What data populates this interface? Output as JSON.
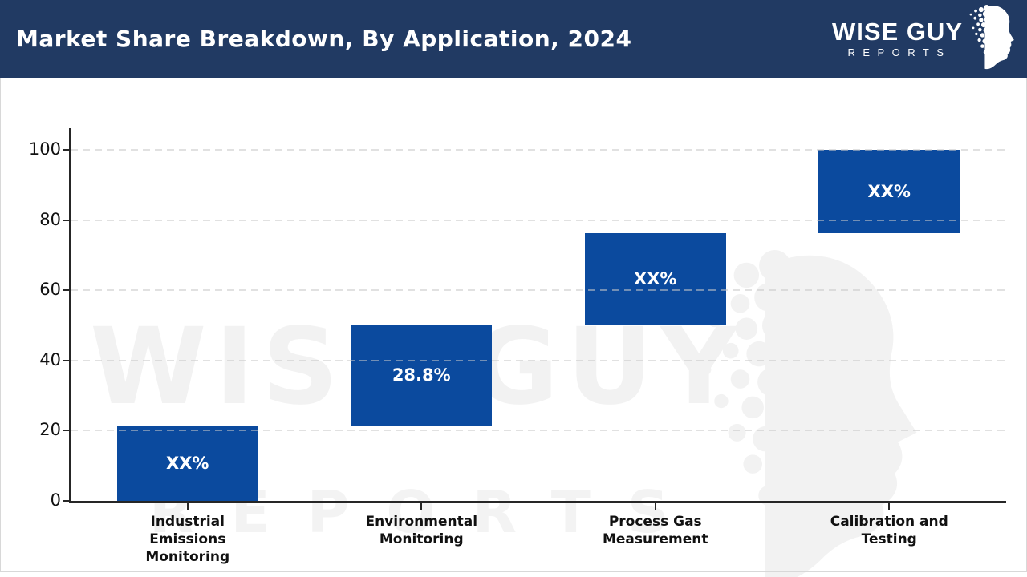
{
  "header": {
    "title": "Market Share Breakdown, By Application, 2024",
    "background_color": "#213a63",
    "logo": {
      "line1": "WISE GUY",
      "line2": "REPORTS"
    }
  },
  "watermark": {
    "line1": "WISE GUY",
    "line2": "REPORTS"
  },
  "chart_data": {
    "type": "bar",
    "subtype": "floating-waterfall",
    "title": "Market Share Breakdown, By Application, 2024",
    "categories": [
      "Industrial Emissions Monitoring",
      "Environmental Monitoring",
      "Process Gas Measurement",
      "Calibration and Testing"
    ],
    "category_label_lines": [
      [
        "Industrial",
        "Emissions",
        "Monitoring"
      ],
      [
        "Environmental",
        "Monitoring"
      ],
      [
        "Process Gas",
        "Measurement"
      ],
      [
        "Calibration and",
        "Testing"
      ]
    ],
    "series": [
      {
        "name": "Market share (%)",
        "segments": [
          {
            "category": "Industrial Emissions Monitoring",
            "start": 0,
            "end": 21.4,
            "label": "XX%"
          },
          {
            "category": "Environmental Monitoring",
            "start": 21.4,
            "end": 50.2,
            "label": "28.8%",
            "value": 28.8
          },
          {
            "category": "Process Gas Measurement",
            "start": 50.2,
            "end": 76.3,
            "label": "XX%"
          },
          {
            "category": "Calibration and Testing",
            "start": 76.3,
            "end": 100,
            "label": "XX%"
          }
        ]
      }
    ],
    "xlabel": "",
    "ylabel": "",
    "ylim": [
      0,
      100
    ],
    "yticks": [
      0,
      20,
      40,
      60,
      80,
      100
    ],
    "grid": "horizontal-dashed",
    "legend": "none",
    "bar_color": "#0b4a9e",
    "bar_label_color": "#ffffff",
    "axis_color": "#262626",
    "gridline_color": "#d9d9d9"
  }
}
